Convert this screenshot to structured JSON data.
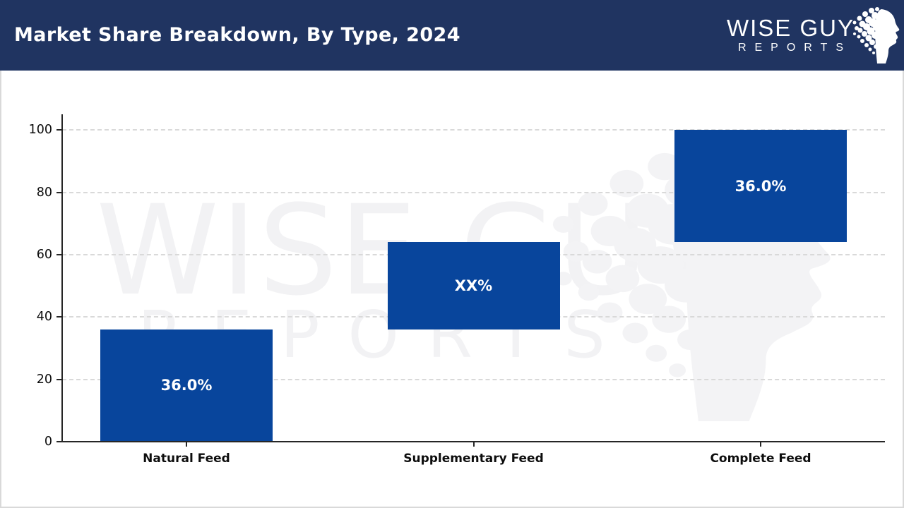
{
  "header": {
    "title": "Market Share Breakdown, By Type, 2024",
    "logo": {
      "line1": "WISE GUY",
      "line2": "REPORTS"
    }
  },
  "watermark": {
    "line1": "WISE GUY",
    "line2": "REPORTS"
  },
  "chart_data": {
    "type": "bar",
    "subtype": "waterfall-floating-segments",
    "title": "Market Share Breakdown, By Type, 2024",
    "categories": [
      "Natural Feed",
      "Supplementary Feed",
      "Complete Feed"
    ],
    "segments": [
      {
        "category": "Natural Feed",
        "start": 0,
        "end": 36,
        "label": "36.0%"
      },
      {
        "category": "Supplementary Feed",
        "start": 36,
        "end": 64,
        "label": "XX%"
      },
      {
        "category": "Complete Feed",
        "start": 64,
        "end": 100,
        "label": "36.0%"
      }
    ],
    "yticks": [
      0,
      20,
      40,
      60,
      80,
      100
    ],
    "ylim": [
      0,
      105
    ],
    "grid": "horizontal-dashed",
    "legend_visible": false,
    "colors": {
      "bar": "#08459c",
      "header_bg": "#203461",
      "axis": "#262626",
      "gridline": "#d9d9d9",
      "bar_label": "#ffffff",
      "tick_label": "#0d0d0d",
      "watermark": "#f3f3f5"
    }
  }
}
